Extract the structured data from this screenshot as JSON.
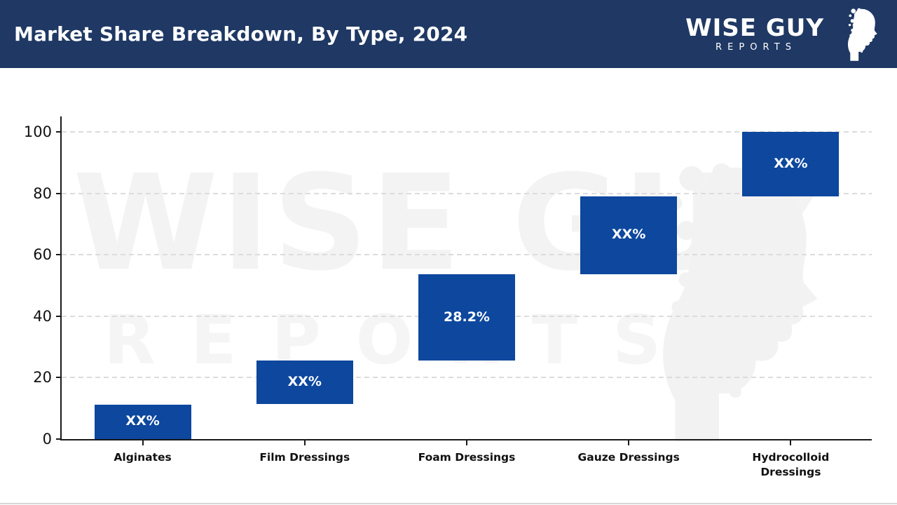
{
  "header": {
    "title": "Market Share Breakdown, By Type, 2024",
    "logo": {
      "line1": "WISE GUY",
      "line2": "REPORTS"
    }
  },
  "watermark": {
    "line1": "WISE GUY",
    "line2": "REPORTS"
  },
  "colors": {
    "header_bg": "#1f3864",
    "bar": "#0d479e",
    "bar_label": "#ffffff",
    "axis": "#1a1a1a",
    "grid": "#dcdcdc",
    "watermark": "#f3f3f3",
    "footer_rule": "#d6d6d6"
  },
  "chart_data": {
    "type": "bar",
    "subtype": "waterfall",
    "title": "Market Share Breakdown, By Type, 2024",
    "categories": [
      "Alginates",
      "Film Dressings",
      "Foam Dressings",
      "Gauze Dressings",
      "Hydrocolloid Dressings"
    ],
    "segments": [
      {
        "category": "Alginates",
        "start": 0,
        "end": 11.3,
        "label": "XX%"
      },
      {
        "category": "Film Dressings",
        "start": 11.3,
        "end": 25.5,
        "label": "XX%"
      },
      {
        "category": "Foam Dressings",
        "start": 25.5,
        "end": 53.7,
        "label": "28.2%"
      },
      {
        "category": "Gauze Dressings",
        "start": 53.7,
        "end": 79,
        "label": "XX%"
      },
      {
        "category": "Hydrocolloid Dressings",
        "start": 79,
        "end": 100,
        "label": "XX%"
      }
    ],
    "xlabel": "",
    "ylabel": "",
    "yticks": [
      0,
      20,
      40,
      60,
      80,
      100
    ],
    "ylim": [
      0,
      104
    ],
    "grid": "horizontal-dashed",
    "legend": "none"
  }
}
